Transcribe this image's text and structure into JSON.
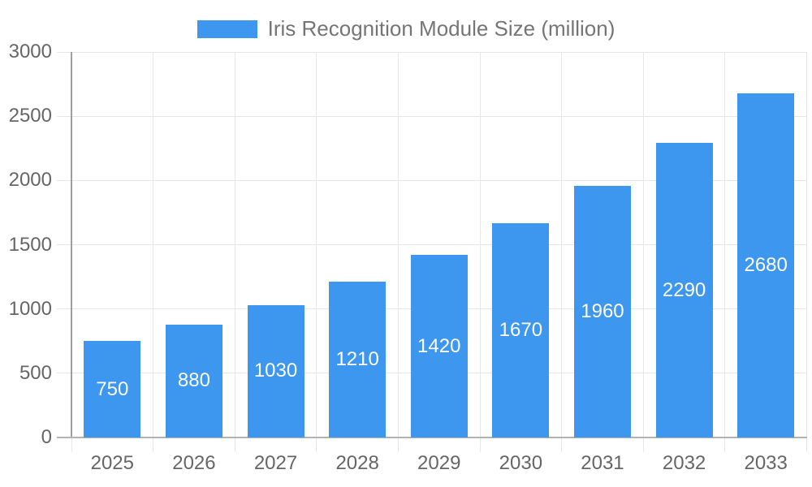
{
  "legend": {
    "label": "Iris Recognition Module Size (million)"
  },
  "chart_data": {
    "type": "bar",
    "title": "Iris Recognition Module Size (million)",
    "series_name": "Iris Recognition Module Size (million)",
    "categories": [
      "2025",
      "2026",
      "2027",
      "2028",
      "2029",
      "2030",
      "2031",
      "2032",
      "2033"
    ],
    "values": [
      750,
      880,
      1030,
      1210,
      1420,
      1670,
      1960,
      2290,
      2680
    ],
    "xlabel": "",
    "ylabel": "",
    "ylim": [
      0,
      3000
    ],
    "yticks": [
      0,
      500,
      1000,
      1500,
      2000,
      2500,
      3000
    ],
    "grid": true,
    "legend_position": "top-center",
    "colors": {
      "bar": "#3d97ee",
      "grid": "#e6e6e6",
      "y_axis_line": "#9e9e9e",
      "x_axis_line": "#b3b3b3",
      "axis_label_text": "#666666",
      "legend_text": "#757575",
      "value_label_text": "#ffffff",
      "background": "#ffffff"
    }
  }
}
